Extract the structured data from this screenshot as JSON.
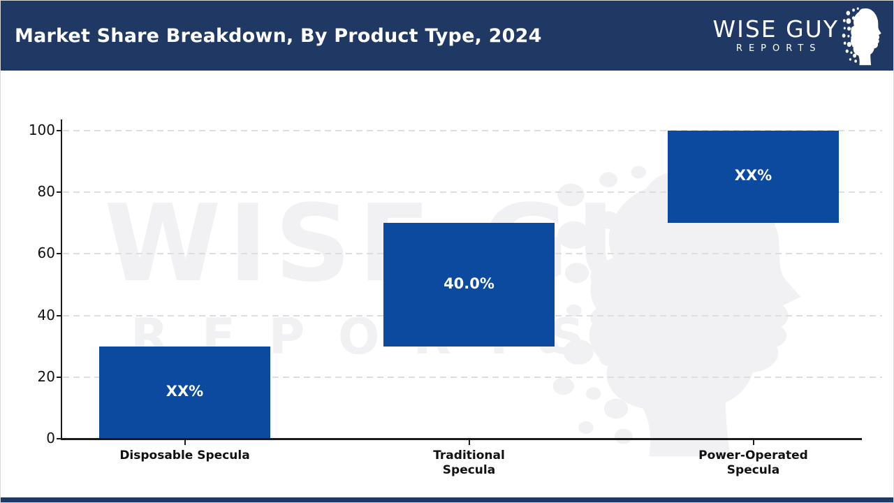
{
  "header": {
    "title": "Market Share Breakdown, By Product Type, 2024",
    "logo_primary": "WISE GUY",
    "logo_secondary": "REPORTS"
  },
  "watermark": {
    "primary": "WISE GUY",
    "secondary": "REPORTS"
  },
  "chart_data": {
    "type": "bar",
    "variant": "floating-range-columns",
    "title": "Market Share Breakdown, By Product Type, 2024",
    "categories": [
      "Disposable Specula",
      "Traditional\nSpecula",
      "Power-Operated\nSpecula"
    ],
    "series": [
      {
        "name": "Market share",
        "ranges": [
          [
            0,
            30
          ],
          [
            30,
            70
          ],
          [
            70,
            100
          ]
        ],
        "segment_sizes": [
          30,
          40,
          30
        ],
        "bar_labels": [
          "XX%",
          "40.0%",
          "XX%"
        ]
      }
    ],
    "xlabel": "",
    "ylabel": "",
    "ylim": [
      0,
      100
    ],
    "yticks": [
      0,
      20,
      40,
      60,
      80,
      100
    ],
    "grid": "horizontal-dashed",
    "legend": "none",
    "bar_color": "#0b4a9e",
    "bar_label_color": "#ffffff"
  },
  "colors": {
    "header_bg": "#203964",
    "footer_bg": "#203964",
    "bar": "#0b4a9e",
    "grid": "#dedede",
    "axis": "#1a1a1a",
    "text": "#111111",
    "watermark": "#f1f1f4"
  }
}
